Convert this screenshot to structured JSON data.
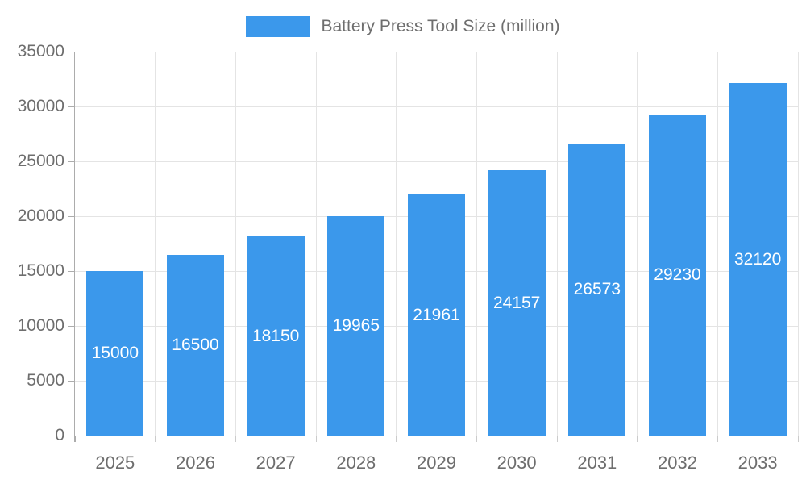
{
  "legend": {
    "label": "Battery Press Tool Size (million)"
  },
  "colors": {
    "bar": "#3B98EB",
    "value_label": "#FFFFFF",
    "axis_text": "#6E6E6E",
    "axis_line": "#ACACAC",
    "gridline": "#E4E4E4",
    "tick": "#CBCBCB",
    "background": "#FFFFFF"
  },
  "chart_data": {
    "type": "bar",
    "title": "Battery Press Tool Size (million)",
    "categories": [
      "2025",
      "2026",
      "2027",
      "2028",
      "2029",
      "2030",
      "2031",
      "2032",
      "2033"
    ],
    "series": [
      {
        "name": "Battery Press Tool Size (million)",
        "values": [
          15000,
          16500,
          18150,
          19965,
          21961,
          24157,
          26573,
          29230,
          32120
        ]
      }
    ],
    "xlabel": "",
    "ylabel": "",
    "ylim": [
      0,
      35000
    ],
    "y_ticks": [
      0,
      5000,
      10000,
      15000,
      20000,
      25000,
      30000,
      35000
    ],
    "grid": true,
    "legend_position": "top-center",
    "value_label_position": "inside-middle"
  }
}
